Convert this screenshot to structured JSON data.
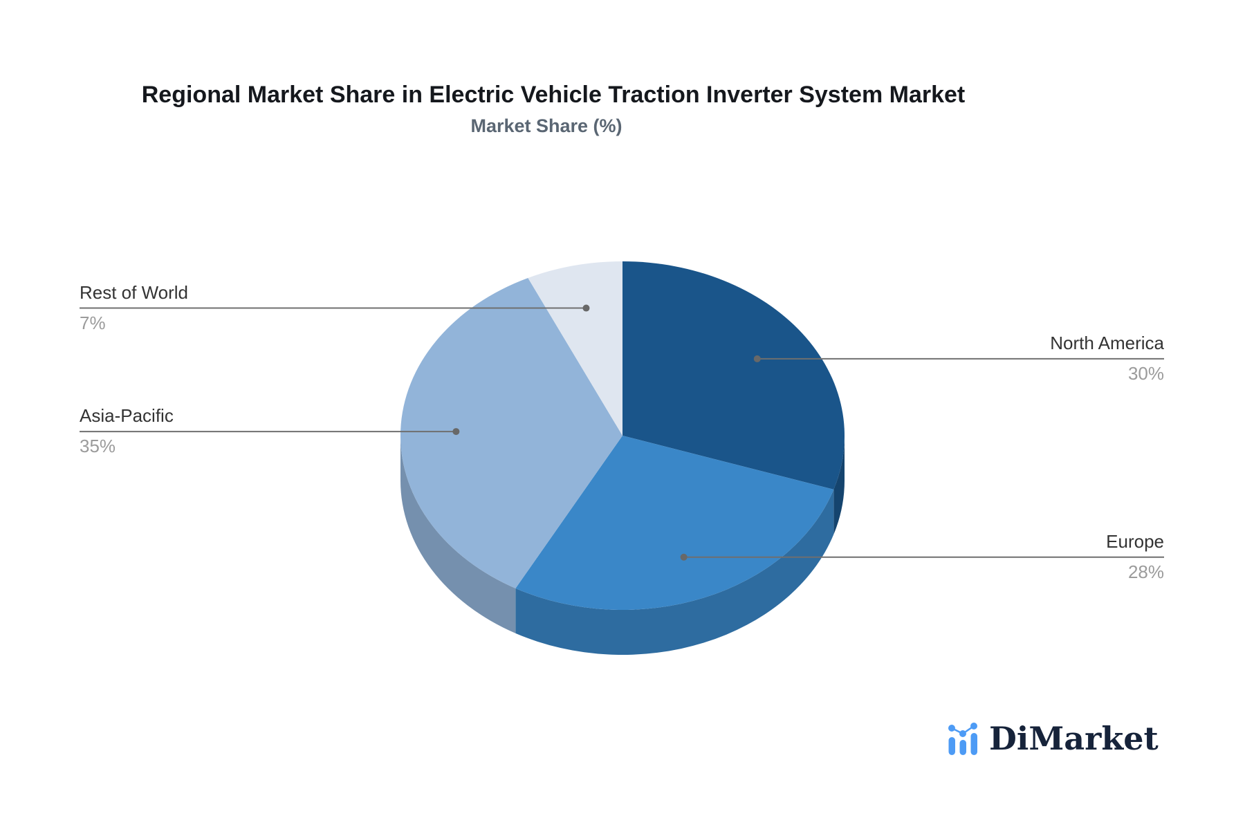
{
  "title": "Regional Market Share in Electric Vehicle Traction Inverter System Market",
  "subtitle": "Market Share (%)",
  "chart_data": {
    "type": "pie",
    "style": "3d",
    "title": "Regional Market Share in Electric Vehicle Traction Inverter System Market",
    "subtitle": "Market Share (%)",
    "unit": "%",
    "direction": "clockwise",
    "start_angle_deg": 0,
    "slices": [
      {
        "label": "North America",
        "value": 30,
        "value_label": "30%",
        "color": "#1A558A",
        "label_side": "right"
      },
      {
        "label": "Europe",
        "value": 28,
        "value_label": "28%",
        "color": "#3A87C8",
        "label_side": "right"
      },
      {
        "label": "Asia-Pacific",
        "value": 35,
        "value_label": "35%",
        "color": "#92B4D9",
        "label_side": "left"
      },
      {
        "label": "Rest of World",
        "value": 7,
        "value_label": "7%",
        "color": "#DFE6F0",
        "label_side": "left"
      }
    ],
    "leader_line_color": "#6F6F6F",
    "leader_dot_color": "#686868",
    "label_name_color": "#333333",
    "label_value_color": "#9B9B9B",
    "background_color": "#FFFFFF"
  },
  "logo": {
    "text": "DiMarket",
    "text_color": "#16233A",
    "icon": "mini-bar-line-chart-icon",
    "icon_color": "#4D9BF5"
  }
}
